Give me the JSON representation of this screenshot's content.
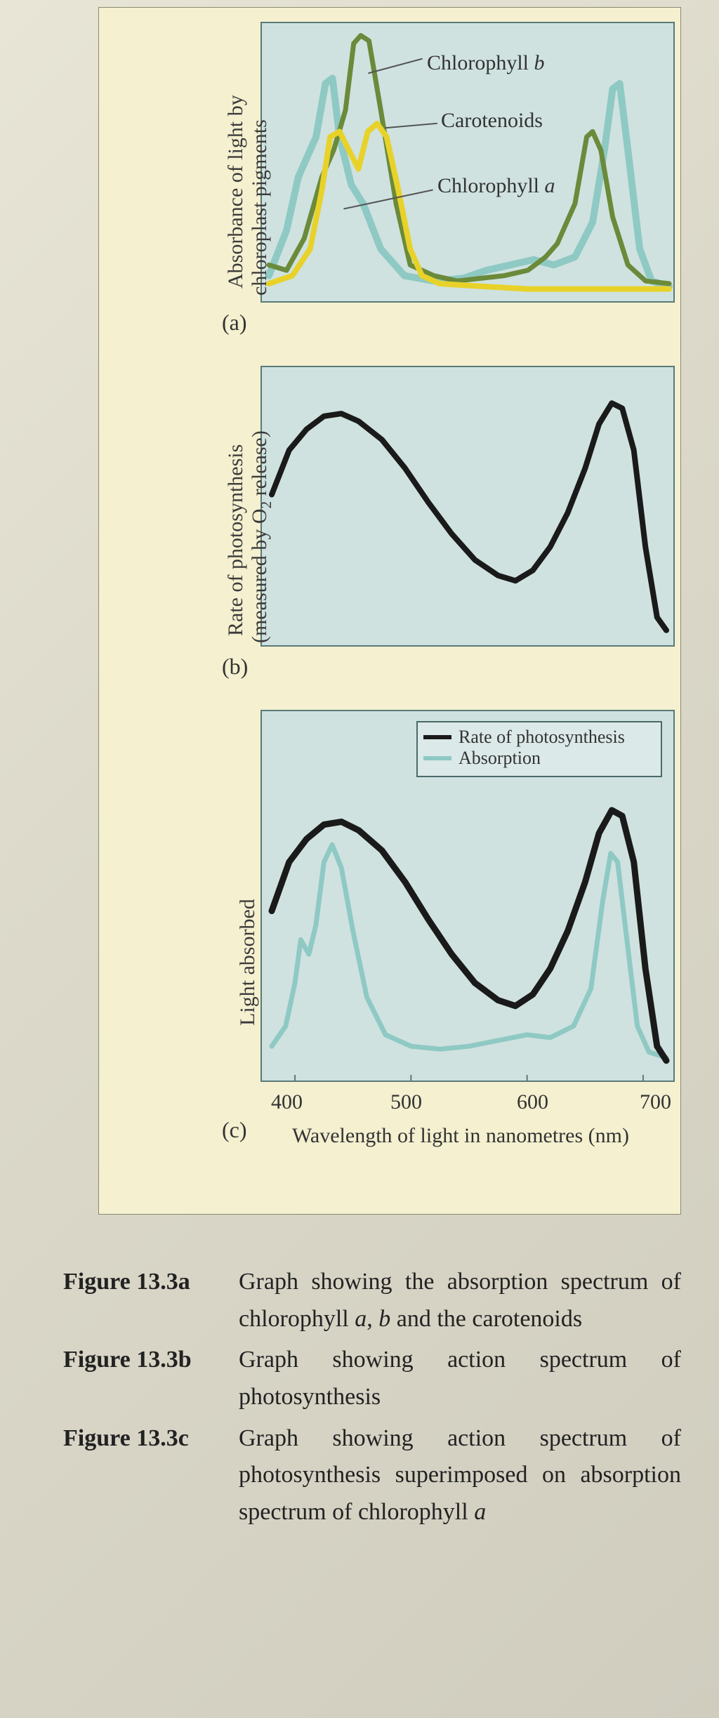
{
  "figure": {
    "background": "#f4f0d0",
    "panel_bg": "#cfe2e0",
    "axis_color": "#5a7a78",
    "xticks": [
      400,
      500,
      600,
      700
    ],
    "xlim": [
      380,
      720
    ],
    "xlabel": "Wavelength of light in nanometres (nm)"
  },
  "panel_a": {
    "letter": "(a)",
    "ylabel_line1": "Absorbance of light by",
    "ylabel_line2": "chloroplast pigments",
    "series": {
      "chlorophyll_b": {
        "label": "Chlorophyll b",
        "color": "#6b8a3a",
        "line_width": 7,
        "points": [
          [
            380,
            12
          ],
          [
            395,
            10
          ],
          [
            410,
            22
          ],
          [
            425,
            45
          ],
          [
            435,
            55
          ],
          [
            445,
            70
          ],
          [
            452,
            95
          ],
          [
            458,
            98
          ],
          [
            465,
            96
          ],
          [
            475,
            70
          ],
          [
            488,
            35
          ],
          [
            500,
            12
          ],
          [
            520,
            8
          ],
          [
            540,
            6
          ],
          [
            560,
            7
          ],
          [
            580,
            8
          ],
          [
            600,
            10
          ],
          [
            615,
            15
          ],
          [
            625,
            20
          ],
          [
            640,
            35
          ],
          [
            650,
            60
          ],
          [
            655,
            62
          ],
          [
            662,
            55
          ],
          [
            672,
            30
          ],
          [
            685,
            12
          ],
          [
            700,
            6
          ],
          [
            720,
            5
          ]
        ]
      },
      "chlorophyll_a": {
        "label": "Chlorophyll a",
        "color": "#8fc9c4",
        "line_width": 10,
        "points": [
          [
            380,
            8
          ],
          [
            395,
            25
          ],
          [
            405,
            45
          ],
          [
            415,
            55
          ],
          [
            420,
            60
          ],
          [
            428,
            80
          ],
          [
            434,
            82
          ],
          [
            440,
            60
          ],
          [
            450,
            42
          ],
          [
            460,
            35
          ],
          [
            475,
            18
          ],
          [
            495,
            8
          ],
          [
            520,
            6
          ],
          [
            545,
            7
          ],
          [
            565,
            10
          ],
          [
            585,
            12
          ],
          [
            605,
            14
          ],
          [
            622,
            12
          ],
          [
            640,
            15
          ],
          [
            655,
            28
          ],
          [
            665,
            55
          ],
          [
            672,
            78
          ],
          [
            678,
            80
          ],
          [
            685,
            55
          ],
          [
            695,
            18
          ],
          [
            705,
            6
          ],
          [
            720,
            4
          ]
        ]
      },
      "carotenoids": {
        "label": "Carotenoids",
        "color": "#e8d22a",
        "line_width": 8,
        "points": [
          [
            380,
            5
          ],
          [
            400,
            8
          ],
          [
            415,
            18
          ],
          [
            425,
            40
          ],
          [
            432,
            60
          ],
          [
            440,
            62
          ],
          [
            448,
            55
          ],
          [
            456,
            48
          ],
          [
            464,
            62
          ],
          [
            472,
            65
          ],
          [
            480,
            60
          ],
          [
            490,
            40
          ],
          [
            500,
            18
          ],
          [
            510,
            8
          ],
          [
            525,
            5
          ],
          [
            560,
            4
          ],
          [
            600,
            3
          ],
          [
            650,
            3
          ],
          [
            700,
            3
          ],
          [
            720,
            3
          ]
        ]
      }
    }
  },
  "panel_b": {
    "letter": "(b)",
    "ylabel_line1": "Rate of photosynthesis",
    "ylabel_line2": "(measured by O₂ release)",
    "series": {
      "action": {
        "color": "#1a1a1a",
        "line_width": 8,
        "points": [
          [
            380,
            55
          ],
          [
            395,
            72
          ],
          [
            410,
            80
          ],
          [
            425,
            85
          ],
          [
            440,
            86
          ],
          [
            455,
            83
          ],
          [
            475,
            76
          ],
          [
            495,
            65
          ],
          [
            515,
            52
          ],
          [
            535,
            40
          ],
          [
            555,
            30
          ],
          [
            575,
            24
          ],
          [
            590,
            22
          ],
          [
            605,
            26
          ],
          [
            620,
            35
          ],
          [
            635,
            48
          ],
          [
            650,
            65
          ],
          [
            662,
            82
          ],
          [
            673,
            90
          ],
          [
            682,
            88
          ],
          [
            692,
            72
          ],
          [
            702,
            35
          ],
          [
            712,
            8
          ],
          [
            720,
            3
          ]
        ]
      }
    }
  },
  "panel_c": {
    "letter": "(c)",
    "ylabel": "Light absorbed",
    "legend": {
      "rate": "Rate of photosynthesis",
      "absorption": "Absorption",
      "rate_color": "#1a1a1a",
      "absorption_color": "#8fc9c4"
    },
    "series": {
      "action": {
        "color": "#1a1a1a",
        "line_width": 9,
        "points": [
          [
            380,
            55
          ],
          [
            395,
            72
          ],
          [
            410,
            80
          ],
          [
            425,
            85
          ],
          [
            440,
            86
          ],
          [
            455,
            83
          ],
          [
            475,
            76
          ],
          [
            495,
            65
          ],
          [
            515,
            52
          ],
          [
            535,
            40
          ],
          [
            555,
            30
          ],
          [
            575,
            24
          ],
          [
            590,
            22
          ],
          [
            605,
            26
          ],
          [
            620,
            35
          ],
          [
            635,
            48
          ],
          [
            650,
            65
          ],
          [
            662,
            82
          ],
          [
            673,
            90
          ],
          [
            682,
            88
          ],
          [
            692,
            72
          ],
          [
            702,
            35
          ],
          [
            712,
            8
          ],
          [
            720,
            3
          ]
        ]
      },
      "absorption": {
        "color": "#8fc9c4",
        "line_width": 7,
        "points": [
          [
            380,
            8
          ],
          [
            392,
            15
          ],
          [
            400,
            30
          ],
          [
            405,
            45
          ],
          [
            412,
            40
          ],
          [
            418,
            50
          ],
          [
            425,
            72
          ],
          [
            432,
            78
          ],
          [
            440,
            70
          ],
          [
            450,
            48
          ],
          [
            462,
            25
          ],
          [
            478,
            12
          ],
          [
            500,
            8
          ],
          [
            525,
            7
          ],
          [
            550,
            8
          ],
          [
            575,
            10
          ],
          [
            600,
            12
          ],
          [
            620,
            11
          ],
          [
            640,
            15
          ],
          [
            655,
            28
          ],
          [
            665,
            58
          ],
          [
            672,
            75
          ],
          [
            678,
            72
          ],
          [
            686,
            45
          ],
          [
            695,
            15
          ],
          [
            705,
            6
          ],
          [
            720,
            4
          ]
        ]
      }
    }
  },
  "captions": {
    "a": {
      "label": "Figure 13.3a",
      "text": "Graph showing the absorption spectrum of chlorophyll a, b and the carotenoids"
    },
    "b": {
      "label": "Figure 13.3b",
      "text": "Graph showing action spectrum of photosynthesis"
    },
    "c": {
      "label": "Figure 13.3c",
      "text": "Graph showing action spectrum of photosynthesis superimposed on absorption spectrum of chlorophyll a"
    }
  }
}
